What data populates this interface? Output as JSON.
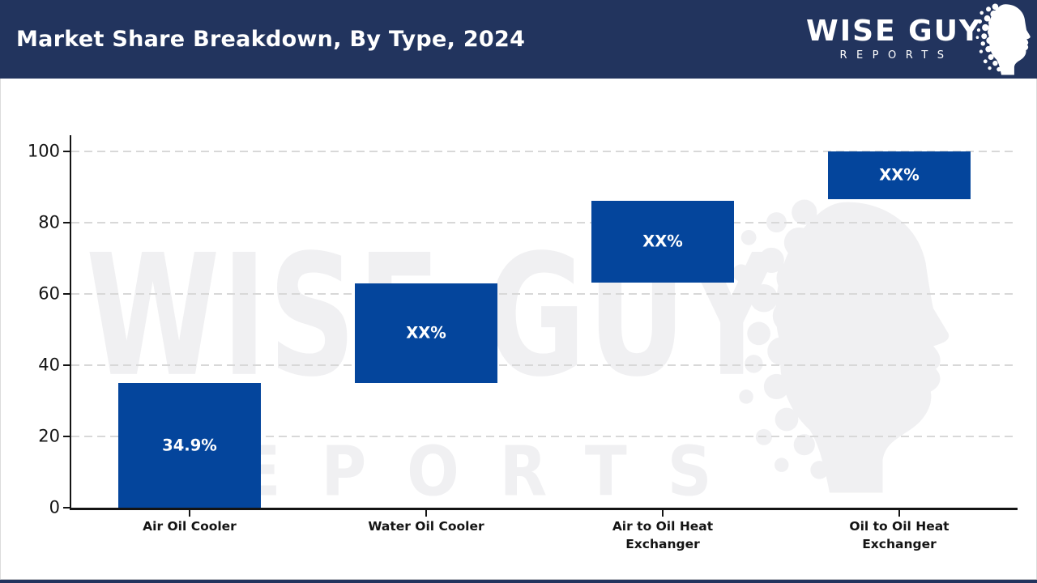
{
  "header": {
    "title": "Market Share Breakdown, By Type, 2024",
    "logo": {
      "name": "WISE GUY",
      "subtitle": "REPORTS"
    }
  },
  "watermark": {
    "line1": "WISE GUY",
    "line2": "REPORTS"
  },
  "colors": {
    "header_bg": "#22345e",
    "footer_bg": "#22345e",
    "bar": "#04459c",
    "bar_label_text": "#ffffff",
    "grid": "#d8d8d8",
    "axis": "#141414",
    "title_text": "#ffffff",
    "watermark": "#f0f0f2"
  },
  "chart_data": {
    "type": "bar",
    "subtype": "waterfall",
    "title": "Market Share Breakdown, By Type, 2024",
    "xlabel": "",
    "ylabel": "",
    "ylim": [
      0,
      100
    ],
    "yticks": [
      0,
      20,
      40,
      60,
      80,
      100
    ],
    "grid": "horizontal-dashed",
    "legend": "none",
    "categories": [
      "Air Oil Cooler",
      "Water Oil Cooler",
      "Air to Oil Heat\nExchanger",
      "Oil to Oil Heat\nExchanger"
    ],
    "bars": [
      {
        "name": "Air Oil Cooler",
        "start": 0,
        "end": 34.9,
        "label": "34.9%"
      },
      {
        "name": "Water Oil Cooler",
        "start": 35.0,
        "end": 63.0,
        "label": "XX%"
      },
      {
        "name": "Air to Oil Heat Exchanger",
        "start": 63.2,
        "end": 86.2,
        "label": "XX%"
      },
      {
        "name": "Oil to Oil Heat Exchanger",
        "start": 86.6,
        "end": 100,
        "label": "XX%"
      }
    ]
  }
}
